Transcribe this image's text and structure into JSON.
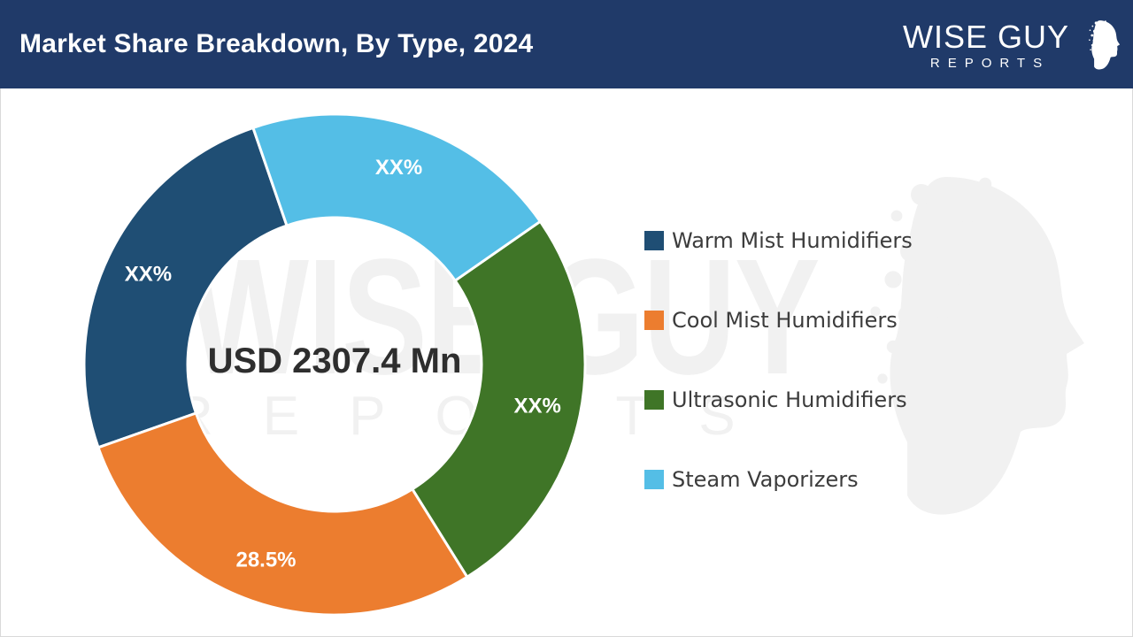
{
  "header": {
    "title": "Market Share Breakdown, By Type, 2024",
    "logo": {
      "wordmark": "WISE GUY",
      "tagline": "REPORTS"
    }
  },
  "watermark": {
    "line1": "WISE GUY",
    "line2": "REPORTS"
  },
  "chart_data": {
    "type": "pie",
    "subtype": "donut",
    "title": "Market Share Breakdown, By Type, 2024",
    "center_label": "USD 2307.4 Mn",
    "categories": [
      "Warm Mist Humidifiers",
      "Cool Mist Humidifiers",
      "Ultrasonic Humidifiers",
      "Steam Vaporizers"
    ],
    "values": [
      25.1,
      28.5,
      25.8,
      20.6
    ],
    "slice_labels": [
      "XX%",
      "28.5%",
      "XX%",
      "XX%"
    ],
    "colors": [
      "#1F4E74",
      "#EC7D2F",
      "#3F7527",
      "#54BEE6"
    ],
    "start_angle_deg": 109,
    "direction": "counterclockwise",
    "legend_position": "right",
    "slice_label_color": "#FFFFFF"
  },
  "theme": {
    "header_bg": "#203A69",
    "content_bg": "#FFFFFF",
    "panel_border": "#D9D9D9",
    "center_label_color": "#2E2E2E",
    "legend_text_color": "#3C3C3C",
    "watermark_color": "#F1F1F1"
  }
}
